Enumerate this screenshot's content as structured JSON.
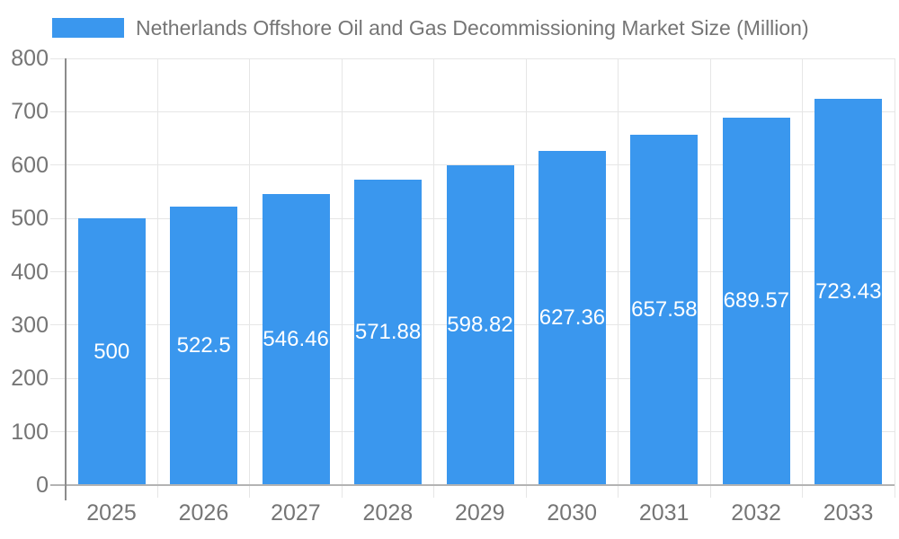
{
  "legend": {
    "label": "Netherlands Offshore Oil and Gas Decommissioning Market Size (Million)"
  },
  "chart_data": {
    "type": "bar",
    "title": "Netherlands Offshore Oil and Gas Decommissioning Market Size (Million)",
    "categories": [
      "2025",
      "2026",
      "2027",
      "2028",
      "2029",
      "2030",
      "2031",
      "2032",
      "2033"
    ],
    "values": [
      500,
      522.5,
      546.46,
      571.88,
      598.82,
      627.36,
      657.58,
      689.57,
      723.43
    ],
    "value_labels": [
      "500",
      "522.5",
      "546.46",
      "571.88",
      "598.82",
      "627.36",
      "657.58",
      "689.57",
      "723.43"
    ],
    "xlabel": "",
    "ylabel": "",
    "ylim": [
      0,
      800
    ],
    "yticks": [
      0,
      100,
      200,
      300,
      400,
      500,
      600,
      700,
      800
    ],
    "grid": true,
    "legend_position": "top-left",
    "colors": {
      "bar": "#3A97EE",
      "grid": "#E6E6E6",
      "x_axis": "#B3B3B3",
      "y_axis": "#8C8C8C",
      "tick_text": "#757575",
      "legend_text": "#757575",
      "bar_label_text": "#FFFFFF",
      "background": "#FFFFFF"
    }
  }
}
